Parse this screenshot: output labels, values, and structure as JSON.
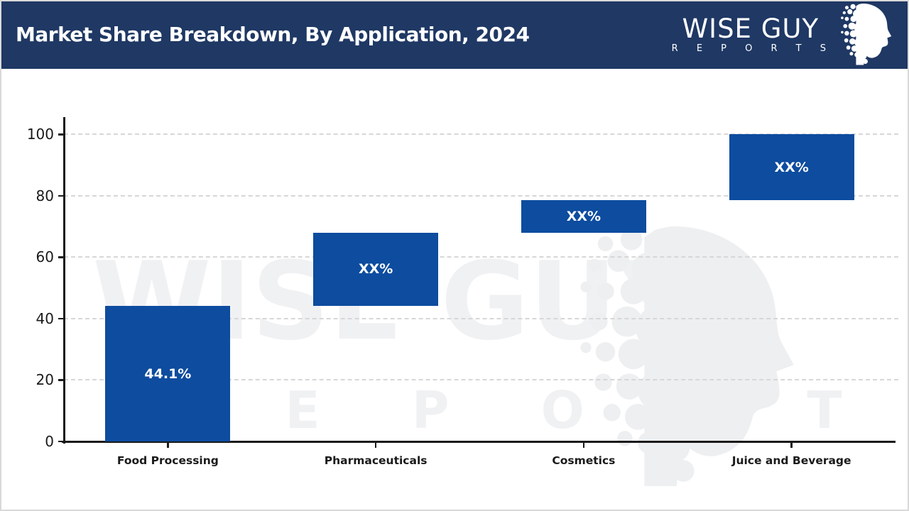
{
  "header": {
    "title": "Market Share Breakdown, By Application, 2024",
    "bg_color": "#1f3864",
    "logo": {
      "line1": "WISE GUY",
      "line2": "R E P O R T S"
    }
  },
  "watermark": {
    "line1": "WISE GUY",
    "line2": "R E P O R T S"
  },
  "chart_data": {
    "type": "bar",
    "variant": "waterfall",
    "title": "Market Share Breakdown, By Application, 2024",
    "categories": [
      "Food Processing",
      "Pharmaceuticals",
      "Cosmetics",
      "Juice and Beverage"
    ],
    "segments": [
      {
        "category": "Food Processing",
        "start": 0,
        "end": 44.1,
        "label": "44.1%"
      },
      {
        "category": "Pharmaceuticals",
        "start": 44.1,
        "end": 68,
        "label": "XX%"
      },
      {
        "category": "Cosmetics",
        "start": 68,
        "end": 78.5,
        "label": "XX%"
      },
      {
        "category": "Juice and Beverage",
        "start": 78.5,
        "end": 100,
        "label": "XX%"
      }
    ],
    "xlabel": "",
    "ylabel": "",
    "yticks": [
      0,
      20,
      40,
      60,
      80,
      100
    ],
    "ylim": [
      0,
      107
    ],
    "grid": "horizontal-dashed",
    "legend": "none",
    "bar_color": "#0d4c9f",
    "bar_label_color": "#ffffff",
    "axis_color": "#1a1a1a",
    "gridline_color": "#d7d7d7"
  }
}
